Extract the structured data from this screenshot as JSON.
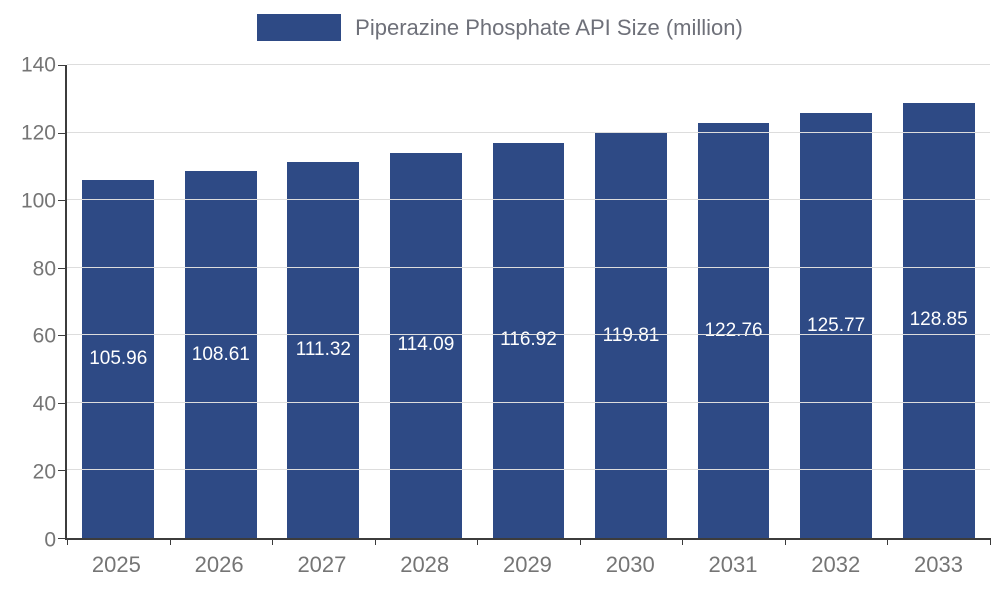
{
  "chart_data": {
    "type": "bar",
    "title": "Piperazine Phosphate API Size (million)",
    "categories": [
      "2025",
      "2026",
      "2027",
      "2028",
      "2029",
      "2030",
      "2031",
      "2032",
      "2033"
    ],
    "values": [
      105.96,
      108.61,
      111.32,
      114.09,
      116.92,
      119.81,
      122.76,
      125.77,
      128.85
    ],
    "value_labels": [
      "105.96",
      "108.61",
      "111.32",
      "114.09",
      "116.92",
      "119.81",
      "122.76",
      "125.77",
      "128.85"
    ],
    "xlabel": "",
    "ylabel": "",
    "ylim": [
      0,
      140
    ],
    "ytick_step": 20,
    "ytick_labels": [
      "0",
      "20",
      "40",
      "60",
      "80",
      "100",
      "120",
      "140"
    ],
    "grid": true,
    "legend_position": "top",
    "bar_color": "#2e4a85",
    "bar_label_color": "#ffffff",
    "axis_label_color": "#757575",
    "gridline_color": "#dddddd"
  }
}
